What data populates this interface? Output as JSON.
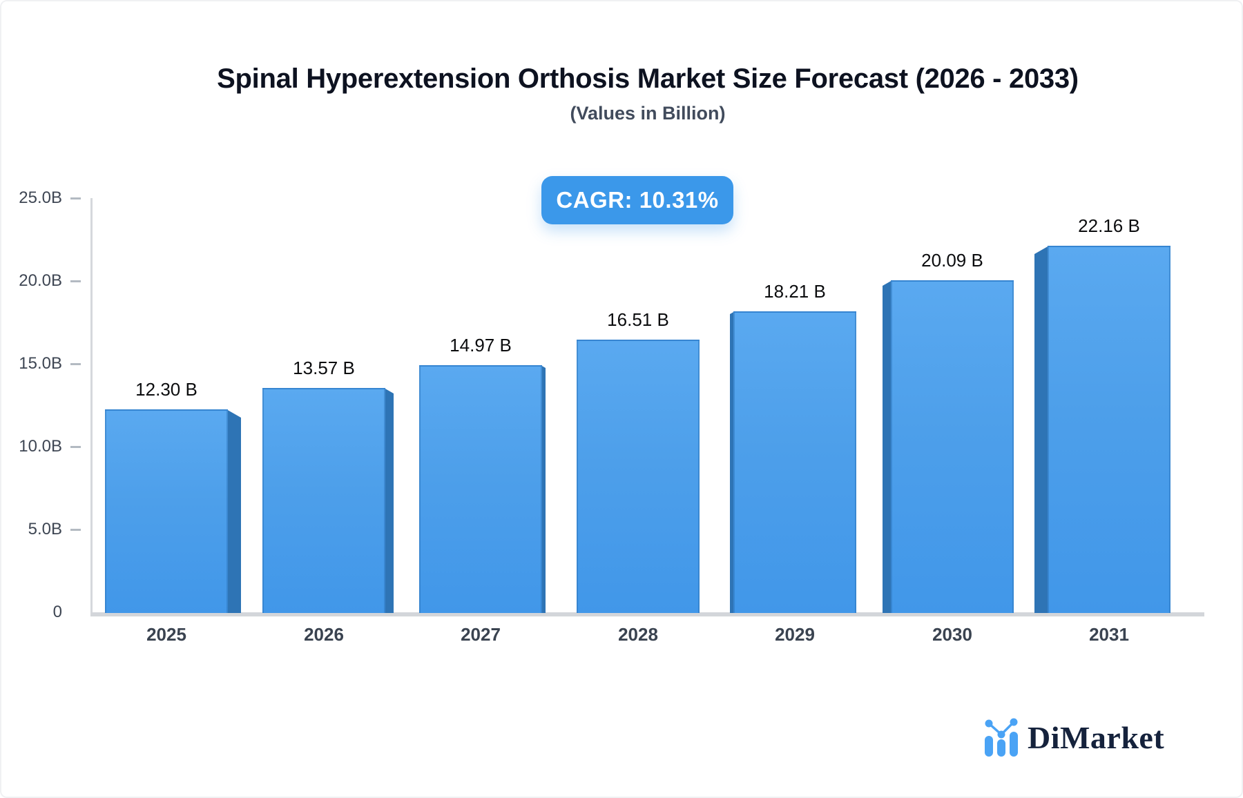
{
  "header": {
    "title": "Spinal Hyperextension Orthosis Market Size Forecast (2026 - 2033)",
    "subtitle": "(Values in Billion)"
  },
  "badge": {
    "label": "CAGR: 10.31%",
    "bg": "#3b98ea",
    "text_color": "#ffffff"
  },
  "chart_data": {
    "type": "bar",
    "title": "Spinal Hyperextension Orthosis Market Size Forecast (2026 - 2033)",
    "subtitle": "(Values in Billion)",
    "categories": [
      "2025",
      "2026",
      "2027",
      "2028",
      "2029",
      "2030",
      "2031"
    ],
    "values": [
      12.3,
      13.57,
      14.97,
      16.51,
      18.21,
      20.09,
      22.16
    ],
    "value_labels": [
      "12.30 B",
      "13.57 B",
      "14.97 B",
      "16.51 B",
      "18.21 B",
      "20.09 B",
      "22.16 B"
    ],
    "xlabel": "",
    "ylabel": "",
    "ylim": [
      0,
      25
    ],
    "ytick_values": [
      25,
      20,
      15,
      10,
      5,
      0
    ],
    "ytick_labels": [
      "25.0B",
      "20.0B",
      "15.0B",
      "10.0B",
      "5.0B",
      "0"
    ],
    "grid": false,
    "legend": "none",
    "bar_style": "3d-bevel",
    "colors": {
      "bar_front_top": "#5aa9f0",
      "bar_front_bottom": "#4197e9",
      "bar_side": "#2e74b5",
      "bar_edge": "#2c73ba",
      "axis_line": "#d5d8dc",
      "baseline": "#d3d6da",
      "tick": "#b3bac2",
      "value_label_color": "#0b0c0e",
      "axis_label_color": "#3e4653"
    }
  },
  "logo": {
    "text": "DiMarket",
    "text_color": "#15223c",
    "icon": "mini-bar-line-chart-icon",
    "icon_color": "#4aa3f5"
  }
}
